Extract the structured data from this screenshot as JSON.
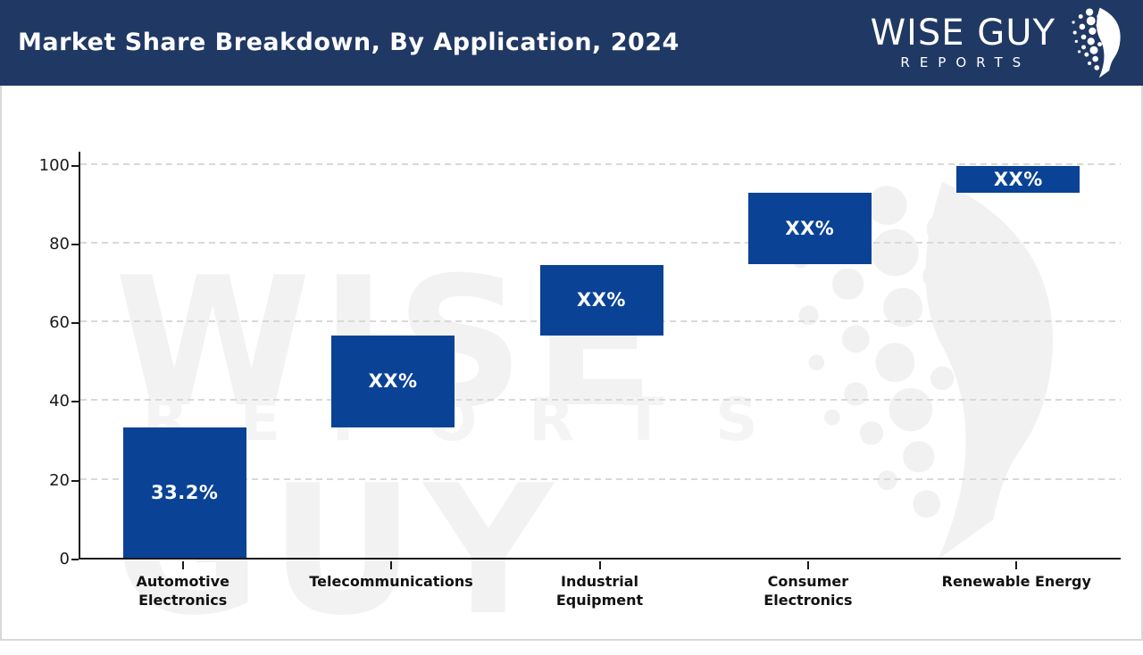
{
  "header": {
    "title": "Market Share Breakdown, By Application, 2024",
    "bg_color": "#203864",
    "logo": {
      "wordmark": "WISE GUY",
      "subtext": "REPORTS",
      "face_icon": "dotted-head-profile-icon"
    }
  },
  "watermark": {
    "wordmark": "WISE GUY",
    "subtext": "REPORTS",
    "face_icon": "dotted-head-profile-icon"
  },
  "chart_data": {
    "type": "bar",
    "variant": "floating-segment-waterfall",
    "title": "Market Share Breakdown, By Application, 2024",
    "xlabel": "",
    "ylabel": "",
    "ylim": [
      0,
      100
    ],
    "yticks": [
      0,
      20,
      40,
      60,
      80,
      100
    ],
    "grid": "horizontal-dashed",
    "legend": "none",
    "bar_color": "#0a4296",
    "bar_label_color": "#ffffff",
    "categories": [
      "Automotive Electronics",
      "Telecommunications",
      "Industrial Equipment",
      "Consumer Electronics",
      "Renewable Energy"
    ],
    "segments": [
      {
        "category_lines": [
          "Automotive",
          "Electronics"
        ],
        "start": 0,
        "end": 33.2,
        "label": "33.2%"
      },
      {
        "category_lines": [
          "Telecommunications"
        ],
        "start": 33.2,
        "end": 56.5,
        "label": "XX%"
      },
      {
        "category_lines": [
          "Industrial",
          "Equipment"
        ],
        "start": 56.5,
        "end": 74.3,
        "label": "XX%"
      },
      {
        "category_lines": [
          "Consumer",
          "Electronics"
        ],
        "start": 74.5,
        "end": 92.7,
        "label": "XX%"
      },
      {
        "category_lines": [
          "Renewable Energy"
        ],
        "start": 92.7,
        "end": 99.5,
        "label": "XX%"
      }
    ]
  }
}
